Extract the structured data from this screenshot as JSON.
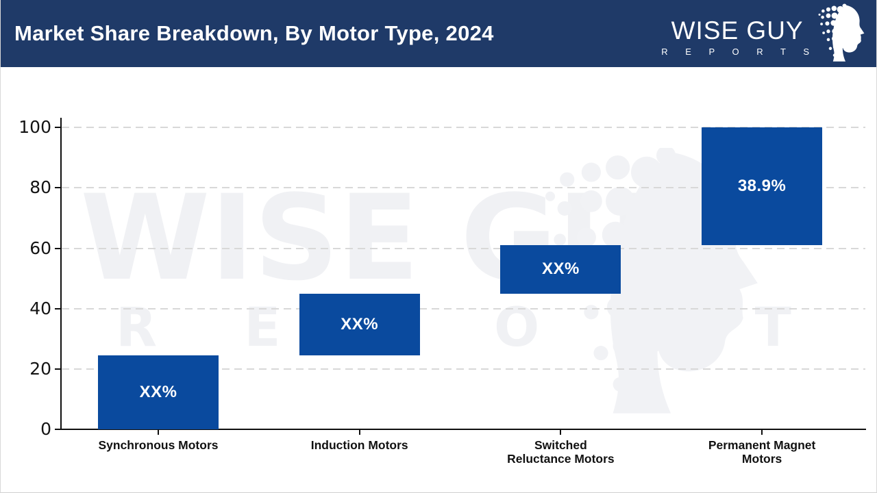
{
  "header": {
    "title": "Market Share Breakdown, By Motor Type, 2024",
    "background_color": "#1f3a68",
    "logo": {
      "line1": "WISE GUY",
      "line2": "R E P O R T S"
    }
  },
  "watermark": {
    "line1": "WISE GUY",
    "line2": "R E P O R T S"
  },
  "chart_data": {
    "type": "bar",
    "subtype": "waterfall",
    "title": "Market Share Breakdown, By Motor Type, 2024",
    "xlabel": "",
    "ylabel": "",
    "ylim": [
      0,
      100
    ],
    "yticks": [
      0,
      20,
      40,
      60,
      80,
      100
    ],
    "grid": "horizontal-dashed",
    "legend": "none",
    "bar_color": "#0a4a9e",
    "value_label_color": "#ffffff",
    "axis_color": "#0f0f0f",
    "gridline_color": "#d8d8d8",
    "categories": [
      {
        "label_lines": [
          "Synchronous Motors"
        ],
        "start": 0,
        "end": 24.4,
        "value_label": "XX%"
      },
      {
        "label_lines": [
          "Induction Motors"
        ],
        "start": 24.4,
        "end": 44.9,
        "value_label": "XX%"
      },
      {
        "label_lines": [
          "Switched",
          "Reluctance Motors"
        ],
        "start": 44.9,
        "end": 61.1,
        "value_label": "XX%"
      },
      {
        "label_lines": [
          "Permanent Magnet",
          "Motors"
        ],
        "start": 61.1,
        "end": 100,
        "value_label": "38.9%"
      }
    ]
  }
}
